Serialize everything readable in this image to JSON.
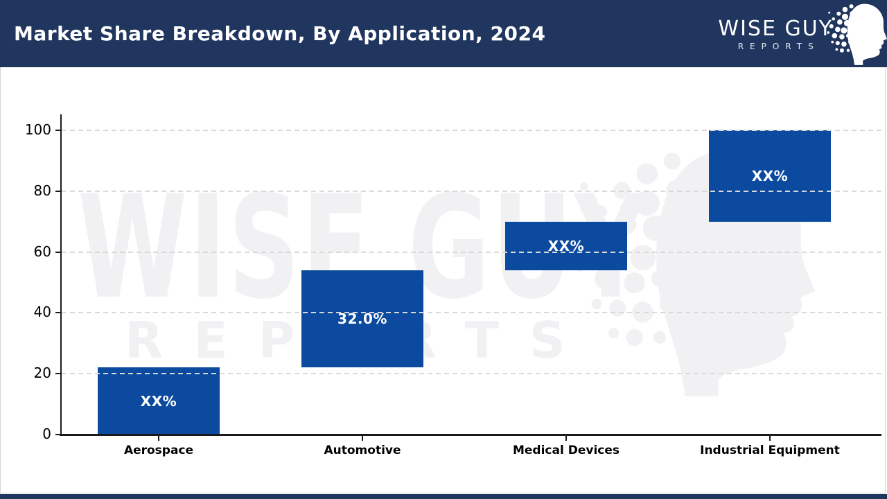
{
  "header": {
    "title": "Market Share Breakdown, By Application, 2024",
    "logo": {
      "line1": "WISE GUY",
      "line2": "REPORTS"
    }
  },
  "watermark": {
    "line1": "WISE GUY",
    "line2": "REPORTS"
  },
  "colors": {
    "header_navy": "#21365E",
    "bar_blue": "#0B4A9E",
    "grid": "#D9D9D9",
    "axis": "#1A1A1A",
    "watermark": "#F1F1F3"
  },
  "chart_data": {
    "type": "bar",
    "subtype": "waterfall",
    "title": "Market Share Breakdown, By Application, 2024",
    "categories": [
      "Aerospace",
      "Automotive",
      "Medical Devices",
      "Industrial Equipment"
    ],
    "segments": [
      {
        "category": "Aerospace",
        "start": 0,
        "end": 22,
        "value_label": "XX%"
      },
      {
        "category": "Automotive",
        "start": 22,
        "end": 54,
        "value_label": "32.0%"
      },
      {
        "category": "Medical Devices",
        "start": 54,
        "end": 70,
        "value_label": "XX%"
      },
      {
        "category": "Industrial Equipment",
        "start": 70,
        "end": 100,
        "value_label": "XX%"
      }
    ],
    "xlabel": "",
    "ylabel": "",
    "ylim": [
      0,
      100
    ],
    "yticks": [
      0,
      20,
      40,
      60,
      80,
      100
    ],
    "grid": "horizontal-dashed",
    "legend": "none"
  }
}
